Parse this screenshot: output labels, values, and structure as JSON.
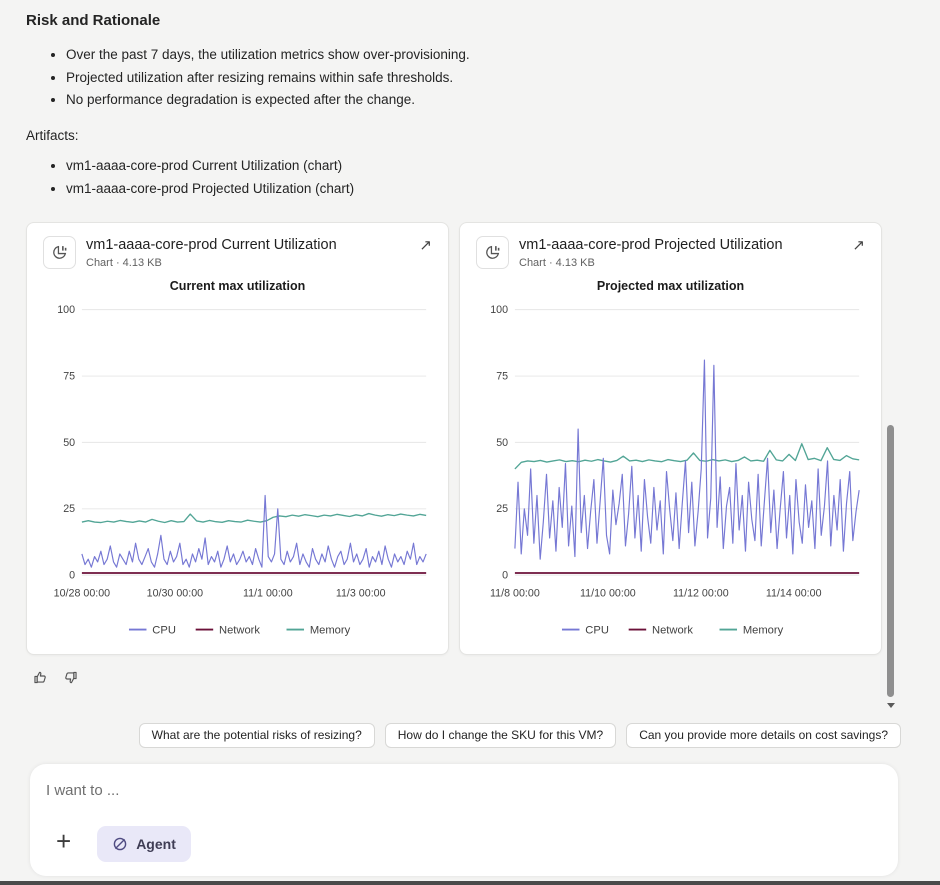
{
  "colors": {
    "page_bg": "#f4f4f3",
    "cpu": "#7678d4",
    "network": "#6b1139",
    "memory": "#52a596",
    "grid": "#e6e6e6",
    "agent_pill_bg": "#e9e8f8"
  },
  "icons": {
    "expand": "↗",
    "plus": "+",
    "chart_file": "chart-icon",
    "thumbs_up": "thumbs-up-icon",
    "thumbs_down": "thumbs-down-icon",
    "agent": "slashed-circle-icon",
    "scroll_down": "chevron-down-icon"
  },
  "risk_section": {
    "title": "Risk and Rationale",
    "bullets": [
      "Over the past 7 days, the utilization metrics show over-provisioning.",
      "Projected utilization after resizing remains within safe thresholds.",
      "No performance degradation is expected after the change."
    ],
    "artifacts_label": "Artifacts:",
    "artifacts": [
      "vm1-aaaa-core-prod Current Utilization (chart)",
      "vm1-aaaa-core-prod Projected Utilization (chart)"
    ]
  },
  "cards": [
    {
      "title": "vm1-aaaa-core-prod Current Utilization",
      "subtitle": "Chart · 4.13 KB"
    },
    {
      "title": "vm1-aaaa-core-prod Projected Utilization",
      "subtitle": "Chart · 4.13 KB"
    }
  ],
  "chart_data": [
    {
      "type": "line",
      "title": "Current max utilization",
      "xlabel": "",
      "ylabel": "",
      "ylim": [
        0,
        100
      ],
      "yticks": [
        0,
        25,
        50,
        75,
        100
      ],
      "xticks": [
        "10/28 00:00",
        "10/30 00:00",
        "11/1 00:00",
        "11/3 00:00"
      ],
      "xtick_frac_step": 0.27,
      "grid": true,
      "grid_color": "#e6e6e6",
      "legend_position": "bottom",
      "series": [
        {
          "name": "CPU",
          "color": "#7678d4",
          "width": 1.2,
          "values": [
            8,
            4,
            6,
            3,
            7,
            5,
            9,
            4,
            6,
            11,
            5,
            3,
            8,
            6,
            4,
            9,
            5,
            12,
            6,
            4,
            7,
            10,
            5,
            3,
            8,
            15,
            6,
            4,
            9,
            5,
            7,
            12,
            4,
            6,
            3,
            8,
            5,
            10,
            6,
            14,
            4,
            7,
            5,
            9,
            3,
            6,
            11,
            5,
            8,
            4,
            6,
            9,
            5,
            7,
            4,
            10,
            6,
            3,
            30,
            7,
            5,
            8,
            25,
            6,
            4,
            9,
            5,
            7,
            12,
            4,
            8,
            5,
            3,
            10,
            6,
            4,
            8,
            5,
            11,
            6,
            3,
            7,
            9,
            4,
            6,
            12,
            5,
            8,
            4,
            6,
            10,
            3,
            7,
            5,
            9,
            4,
            11,
            6,
            3,
            8,
            5,
            7,
            4,
            9,
            6,
            12,
            4,
            7,
            5,
            8
          ]
        },
        {
          "name": "Network",
          "color": "#6b1139",
          "width": 1.8,
          "values": [
            0.8,
            0.8
          ]
        },
        {
          "name": "Memory",
          "color": "#52a596",
          "width": 1.4,
          "values": [
            20,
            20.5,
            20,
            19.8,
            20.3,
            20,
            20.6,
            20.2,
            19.9,
            20.4,
            20,
            21,
            20.3,
            19.8,
            20.5,
            20,
            20.2,
            23,
            20.4,
            20,
            20.6,
            20.1,
            19.9,
            20.5,
            20.2,
            20,
            20.7,
            20.3,
            20,
            20.5,
            21.8,
            22.3,
            22,
            22.6,
            22.2,
            22.8,
            22.4,
            22,
            22.6,
            22.3,
            22.9,
            22.5,
            22.1,
            22.7,
            22.3,
            23.2,
            22.6,
            22.2,
            22.8,
            22.4,
            23,
            22.6,
            22.3,
            22.9,
            22.5
          ]
        }
      ]
    },
    {
      "type": "line",
      "title": "Projected max utilization",
      "xlabel": "",
      "ylabel": "",
      "ylim": [
        0,
        100
      ],
      "yticks": [
        0,
        25,
        50,
        75,
        100
      ],
      "xticks": [
        "11/8 00:00",
        "11/10 00:00",
        "11/12 00:00",
        "11/14 00:00"
      ],
      "xtick_frac_step": 0.27,
      "grid": true,
      "grid_color": "#e6e6e6",
      "legend_position": "bottom",
      "series": [
        {
          "name": "CPU",
          "color": "#7678d4",
          "width": 1.2,
          "values": [
            10,
            35,
            8,
            25,
            15,
            40,
            12,
            30,
            6,
            20,
            38,
            14,
            28,
            9,
            33,
            18,
            42,
            11,
            26,
            7,
            55,
            16,
            30,
            10,
            24,
            36,
            12,
            28,
            44,
            15,
            8,
            32,
            19,
            27,
            38,
            11,
            23,
            41,
            14,
            30,
            9,
            36,
            22,
            12,
            33,
            17,
            28,
            8,
            39,
            25,
            13,
            31,
            10,
            27,
            43,
            16,
            35,
            11,
            24,
            40,
            81,
            14,
            29,
            79,
            18,
            37,
            10,
            26,
            33,
            12,
            42,
            17,
            30,
            9,
            35,
            21,
            13,
            38,
            11,
            28,
            44,
            16,
            32,
            10,
            25,
            39,
            14,
            30,
            8,
            36,
            20,
            12,
            34,
            18,
            28,
            10,
            40,
            15,
            26,
            43,
            11,
            30,
            17,
            36,
            9,
            27,
            39,
            13,
            24,
            32
          ]
        },
        {
          "name": "Network",
          "color": "#6b1139",
          "width": 1.8,
          "values": [
            0.8,
            0.8
          ]
        },
        {
          "name": "Memory",
          "color": "#52a596",
          "width": 1.4,
          "values": [
            40,
            42.5,
            43,
            42.8,
            43.2,
            42.6,
            43,
            43.4,
            42.8,
            43.1,
            42.7,
            43.3,
            42.9,
            43.5,
            43,
            42.6,
            43.2,
            44.8,
            43,
            43.3,
            42.8,
            43.4,
            43,
            42.7,
            43.5,
            43.1,
            42.8,
            43.3,
            46,
            43.2,
            42.9,
            43.5,
            43,
            43.4,
            42.8,
            43.2,
            44.5,
            43,
            43.3,
            42.9,
            47,
            43.4,
            43,
            45.5,
            43.2,
            49.5,
            43.5,
            44,
            43.1,
            48,
            43.6,
            43.2,
            45,
            43.8,
            43.4
          ]
        }
      ]
    }
  ],
  "suggestions": [
    "What are the potential risks of resizing?",
    "How do I change the SKU for this VM?",
    "Can you provide more details on cost savings?"
  ],
  "composer": {
    "placeholder": "I want to ...",
    "agent_label": "Agent"
  }
}
